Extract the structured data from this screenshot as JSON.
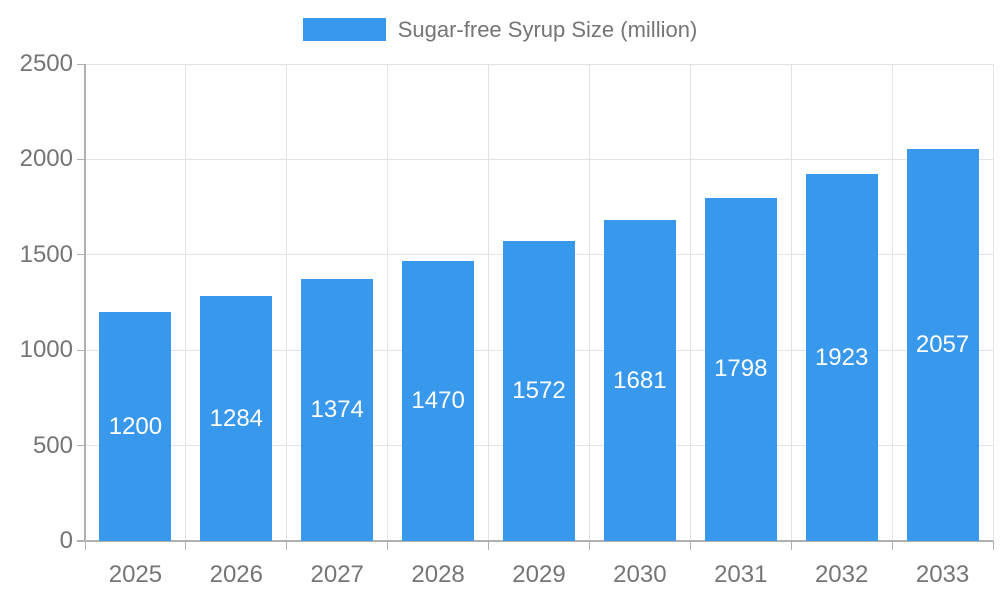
{
  "chart_data": {
    "type": "bar",
    "title": "",
    "xlabel": "",
    "ylabel": "",
    "categories": [
      "2025",
      "2026",
      "2027",
      "2028",
      "2029",
      "2030",
      "2031",
      "2032",
      "2033"
    ],
    "series": [
      {
        "name": "Sugar-free Syrup Size (million)",
        "values": [
          1200,
          1284,
          1374,
          1470,
          1572,
          1681,
          1798,
          1923,
          2057
        ]
      }
    ],
    "data_labels_visible": true,
    "ylim": [
      0,
      2500
    ],
    "yticks": [
      0,
      500,
      1000,
      1500,
      2000,
      2500
    ],
    "grid": "on",
    "legend_position": "top-center",
    "colors": {
      "bar": "#3898ec",
      "bar_label_text": "#ffffff",
      "axis_text": "#757575",
      "gridline": "#e3e3e3",
      "axis_line": "#b0b0b0"
    }
  },
  "legend": {
    "items": [
      {
        "label": "Sugar-free Syrup Size (million)",
        "color": "#3898ec"
      }
    ]
  }
}
